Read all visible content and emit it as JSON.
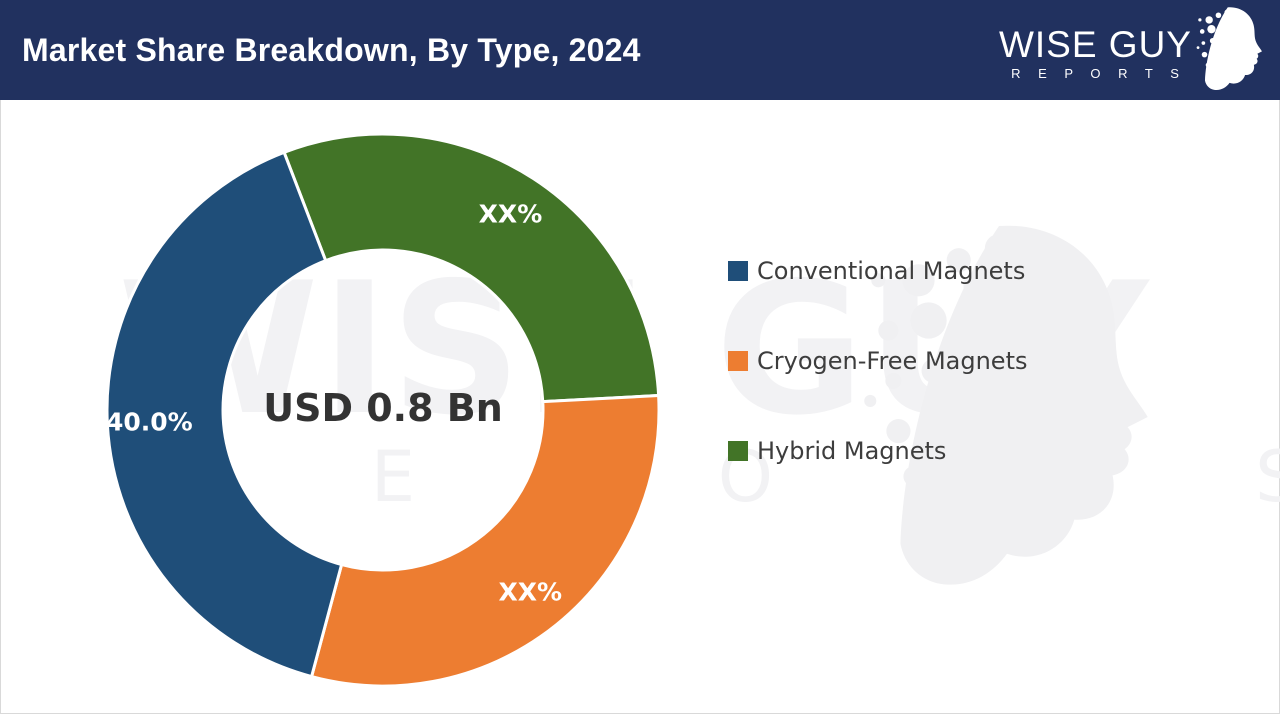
{
  "header": {
    "title": "Market Share Breakdown, By Type, 2024",
    "background_color": "#21315f",
    "logo": {
      "line1": "WISE GUY",
      "line2": "R E P O R T S"
    }
  },
  "watermark": {
    "line1": "WISE GUY",
    "line2": "R E P O R T S"
  },
  "chart_data": {
    "type": "donut",
    "title": "Market Share Breakdown, By Type, 2024",
    "center_label": "USD 0.8 Bn",
    "start_angle_deg_clockwise_from_top": -21,
    "outer_radius_px": 276,
    "inner_radius_px": 160,
    "label_radius_px": 234,
    "legend_position": "right",
    "segments": [
      {
        "label": "Conventional Magnets",
        "value_pct": 40,
        "slice_label": "40.0%",
        "color": "#1f4e79"
      },
      {
        "label": "Cryogen-Free Magnets",
        "value_pct": 30,
        "slice_label": "XX%",
        "color": "#ed7d31"
      },
      {
        "label": "Hybrid Magnets",
        "value_pct": 30,
        "slice_label": "XX%",
        "color": "#427427"
      }
    ],
    "slice_label_color": "#ffffff",
    "separator_color": "#ffffff"
  }
}
